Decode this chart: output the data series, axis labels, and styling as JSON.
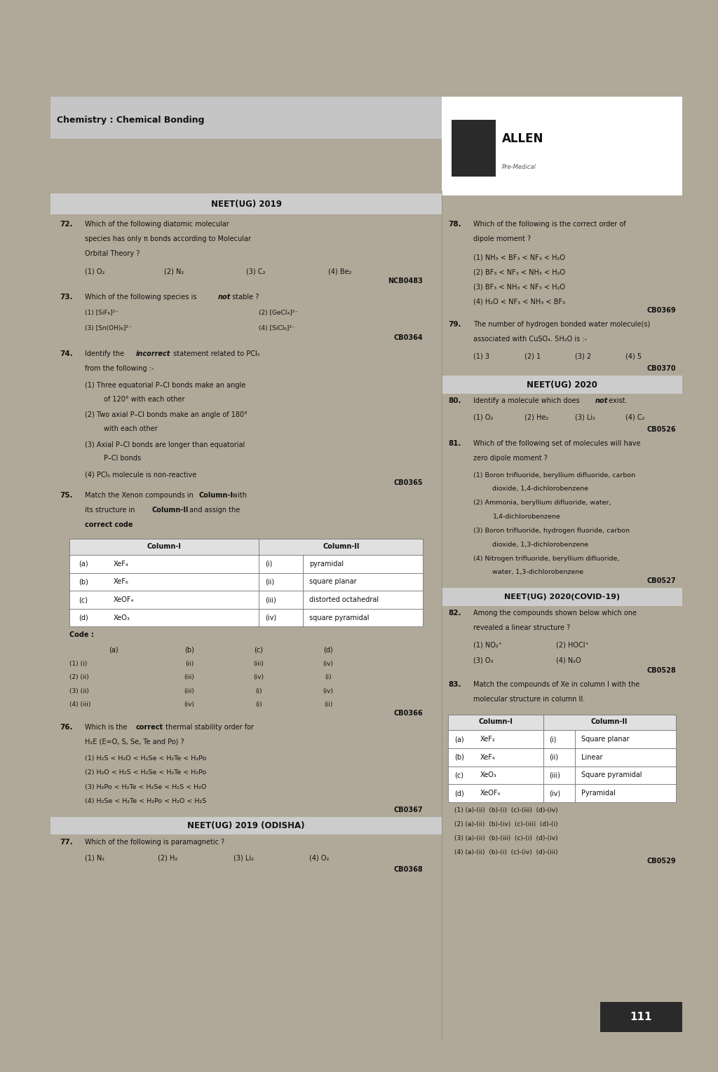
{
  "bg_color": "#b0a898",
  "page_bg": "#f2f0ec",
  "header_bg": "#c5c5c5",
  "section_bg": "#cccccc",
  "title": "Chemistry : Chemical Bonding",
  "pre_medical": "Pre-Medical",
  "page_number": "111",
  "left_col": {
    "section1_title": "NEET(UG) 2019",
    "q72_lines": [
      "Which of the following diatomic molecular",
      "species has only π bonds according to Molecular",
      "Orbital Theory ?"
    ],
    "q72_opts": [
      "(1) O₂",
      "(2) N₂",
      "(3) C₂",
      "(4) Be₂"
    ],
    "q72_code": "NCB0483",
    "q73_pre": "Which of the following species is ",
    "q73_bold": "not",
    "q73_post": " stable ?",
    "q73_opts": [
      "(1) [SiF₆]²⁻",
      "(2) [GeCl₄]²⁻",
      "(3) [Sn(OH)₆]²⁻",
      "(4) [SiCl₆]²⁻"
    ],
    "q73_code": "CB0364",
    "q74_pre": "Identify the ",
    "q74_bold": "incorrect",
    "q74_post": " statement related to PCl₅",
    "q74_line2": "from the following :-",
    "q74_opts": [
      [
        "(1) Three equatorial P–Cl bonds make an angle",
        "of 120° with each other"
      ],
      [
        "(2) Two axial P–Cl bonds make an angle of 180°",
        "with each other"
      ],
      [
        "(3) Axial P–Cl bonds are longer than equatorial",
        "P–Cl bonds"
      ],
      [
        "(4) PCl₅ molecule is non-reactive"
      ]
    ],
    "q74_code": "CB0365",
    "q75_pre1": "Match the Xenon compounds in ",
    "q75_bold1": "Column-I",
    "q75_post1": " with",
    "q75_pre2": "its structure in ",
    "q75_bold2": "Column-II",
    "q75_post2": " and assign the",
    "q75_bold3": "correct code",
    "q75_col1_labels": [
      "(a)",
      "(b)",
      "(c)",
      "(d)"
    ],
    "q75_col1_vals": [
      "XeF₄",
      "XeF₆",
      "XeOF₄",
      "XeO₃"
    ],
    "q75_col2_nums": [
      "(i)",
      "(ii)",
      "(iii)",
      "(iv)"
    ],
    "q75_col2_vals": [
      "pyramidal",
      "square planar",
      "distorted octahedral",
      "square pyramidal"
    ],
    "q75_code_label": "Code :",
    "q75_code_headers": [
      "(a)",
      "(b)",
      "(c)",
      "(d)"
    ],
    "q75_code_rows": [
      [
        "(1) (i)",
        "(ii)",
        "(iii)",
        "(iv)"
      ],
      [
        "(2) (ii)",
        "(iii)",
        "(iv)",
        "(i)"
      ],
      [
        "(3) (ii)",
        "(iii)",
        "(i)",
        "(iv)"
      ],
      [
        "(4) (iii)",
        "(iv)",
        "(i)",
        "(ii)"
      ]
    ],
    "q75_code": "CB0366",
    "q76_pre": "Which is the ",
    "q76_bold": "correct",
    "q76_post": " thermal stability order for",
    "q76_line2": "H₂E (E=O, S, Se, Te and Po) ?",
    "q76_opts": [
      "(1) H₂S < H₂O < H₂Se < H₂Te < H₂Po",
      "(2) H₂O < H₂S < H₂Se < H₂Te < H₂Po",
      "(3) H₂Po < H₂Te < H₂Se < H₂S < H₂O",
      "(4) H₂Se < H₂Te < H₂Po < H₂O < H₂S"
    ],
    "q76_code": "CB0367",
    "section2_title": "NEET(UG) 2019 (ODISHA)",
    "q77_text": "Which of the following is paramagnetic ?",
    "q77_opts": [
      "(1) N₂",
      "(2) H₂",
      "(3) Li₂",
      "(4) O₂"
    ],
    "q77_code": "CB0368"
  },
  "right_col": {
    "q78_lines": [
      "Which of the following is the correct order of",
      "dipole moment ?"
    ],
    "q78_opts": [
      "(1) NH₃ < BF₃ < NF₃ < H₂O",
      "(2) BF₃ < NF₃ < NH₃ < H₂O",
      "(3) BF₃ < NH₃ < NF₃ < H₂O",
      "(4) H₂O < NF₃ < NH₃ < BF₃"
    ],
    "q78_code": "CB0369",
    "q79_lines": [
      "The number of hydrogen bonded water molecule(s)",
      "associated with CuSO₄. 5H₂O is :-"
    ],
    "q79_opts": [
      "(1) 3",
      "(2) 1",
      "(3) 2",
      "(4) 5"
    ],
    "q79_code": "CB0370",
    "section2_title": "NEET(UG) 2020",
    "q80_pre": "Identify a molecule which does ",
    "q80_bold": "not",
    "q80_post": " exist.",
    "q80_opts": [
      "(1) O₂",
      "(2) He₂",
      "(3) Li₂",
      "(4) C₂"
    ],
    "q80_code": "CB0526",
    "q81_lines": [
      "Which of the following set of molecules will have",
      "zero dipole moment ?"
    ],
    "q81_opts": [
      [
        "(1) Boron trifluoride, beryllium difluoride, carbon",
        "dioxide, 1,4-dichlorobenzene"
      ],
      [
        "(2) Ammonia, beryllium difluoride, water,",
        "1,4-dichlorobenzene"
      ],
      [
        "(3) Boron trifluoride, hydrogen fluoride, carbon",
        "dioxide, 1,3-dichlorobenzene"
      ],
      [
        "(4) Nitrogen trifluoride, beryllium difluoride,",
        "water, 1,3-dichlorobenzene"
      ]
    ],
    "q81_code": "CB0527",
    "section3_title": "NEET(UG) 2020(COVID-19)",
    "q82_lines": [
      "Among the compounds shown below which one",
      "revealed a linear structure ?"
    ],
    "q82_opts": [
      "(1) NO₂⁺",
      "(2) HOCl⁺",
      "(3) O₃",
      "(4) N₂O"
    ],
    "q82_code": "CB0528",
    "q83_lines": [
      "Match the compounds of Xe in column I with the",
      "molecular structure in column II."
    ],
    "q83_col1_labels": [
      "(a)",
      "(b)",
      "(c)",
      "(d)"
    ],
    "q83_col1_vals": [
      "XeF₂",
      "XeF₄",
      "XeO₃",
      "XeOF₄"
    ],
    "q83_col2_nums": [
      "(i)",
      "(ii)",
      "(iii)",
      "(iv)"
    ],
    "q83_col2_vals": [
      "Square planar",
      "Linear",
      "Square pyramidal",
      "Pyramidal"
    ],
    "q83_code_rows": [
      "(1) (a)-(ii)  (b)-(i)  (c)-(iii)  (d)-(iv)",
      "(2) (a)-(ii)  (b)-(iv)  (c)-(iii)  (d)-(i)",
      "(3) (a)-(ii)  (b)-(iii)  (c)-(i)  (d)-(iv)",
      "(4) (a)-(ii)  (b)-(i)  (c)-(iv)  (d)-(iii)"
    ],
    "q83_code": "CB0529"
  }
}
